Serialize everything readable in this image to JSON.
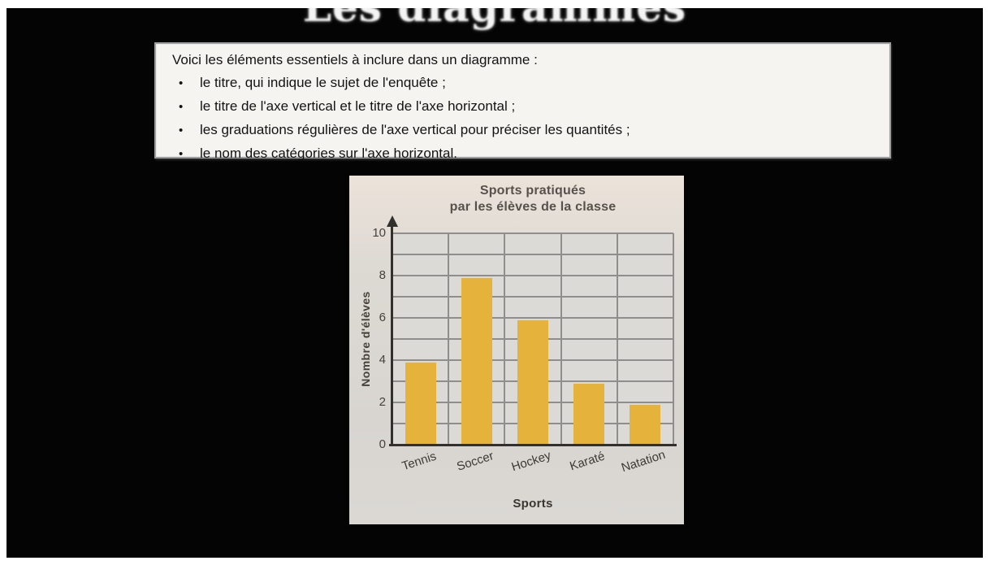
{
  "slide": {
    "title": "Les diagrammes"
  },
  "info_box": {
    "intro": "Voici les éléments essentiels à inclure dans un diagramme :",
    "bullet_char": "•",
    "bullets": [
      "le titre, qui indique le sujet de l'enquête ;",
      "le titre de l'axe vertical et le titre de l'axe horizontal ;",
      "les graduations régulières de l'axe vertical pour préciser les quantités ;",
      "le nom des catégories sur l'axe horizontal."
    ]
  },
  "chart_data": {
    "type": "bar",
    "title": "Sports pratiqués par les élèves de la classe",
    "title_lines": [
      "Sports pratiqués",
      "par les élèves de la classe"
    ],
    "categories": [
      "Tennis",
      "Soccer",
      "Hockey",
      "Karaté",
      "Natation"
    ],
    "values": [
      4,
      8,
      6,
      3,
      2
    ],
    "xlabel": "Sports",
    "ylabel": "Nombre d'élèves",
    "ylim": [
      0,
      10
    ],
    "ytick_labels": [
      "0",
      "2",
      "4",
      "6",
      "8",
      "10"
    ],
    "gridline_step": 1,
    "grid": true,
    "legend_position": "none",
    "bar_color": "#e5b23c"
  },
  "colors": {
    "frame": "#ffffff",
    "background": "#040404",
    "bar": "#e5b23c",
    "card_background": "#ddd9d3",
    "gridline": "#8f8e8c",
    "axis": "#32302c",
    "info_box_background": "#f5f4f1"
  }
}
